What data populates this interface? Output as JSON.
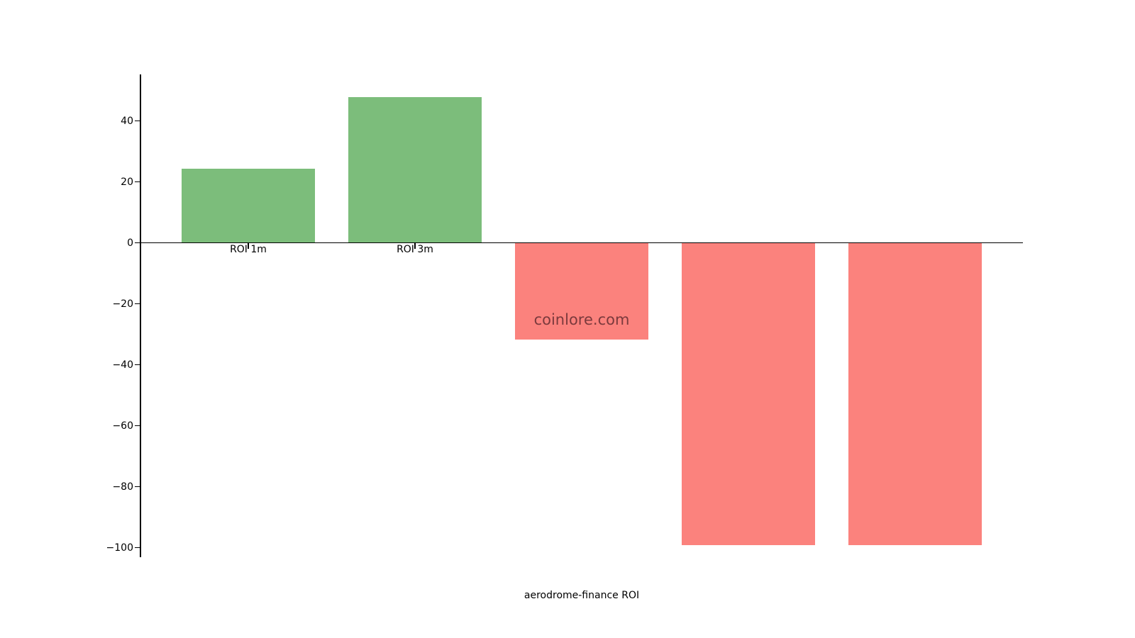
{
  "chart_data": {
    "type": "bar",
    "title": "aerodrome-finance ROI",
    "categories": [
      "ROI 1m",
      "ROI 3m",
      "",
      "",
      ""
    ],
    "values": [
      24.4,
      47.9,
      -31.8,
      -99.3,
      -99.3
    ],
    "yticks": [
      40,
      20,
      0,
      -20,
      -40,
      -60,
      -80,
      -100
    ],
    "ylim": [
      -103,
      55
    ],
    "xlabel": "aerodrome-finance ROI",
    "ylabel": "",
    "grid": false,
    "legend_position": "none",
    "colors": {
      "positive": "#7cbd7b",
      "negative": "#fb827d"
    },
    "notes": "x tick labels of the three negative bars are hidden behind the bars"
  },
  "watermark": {
    "text": "coinlore.com",
    "color": "#7b3a3d"
  }
}
